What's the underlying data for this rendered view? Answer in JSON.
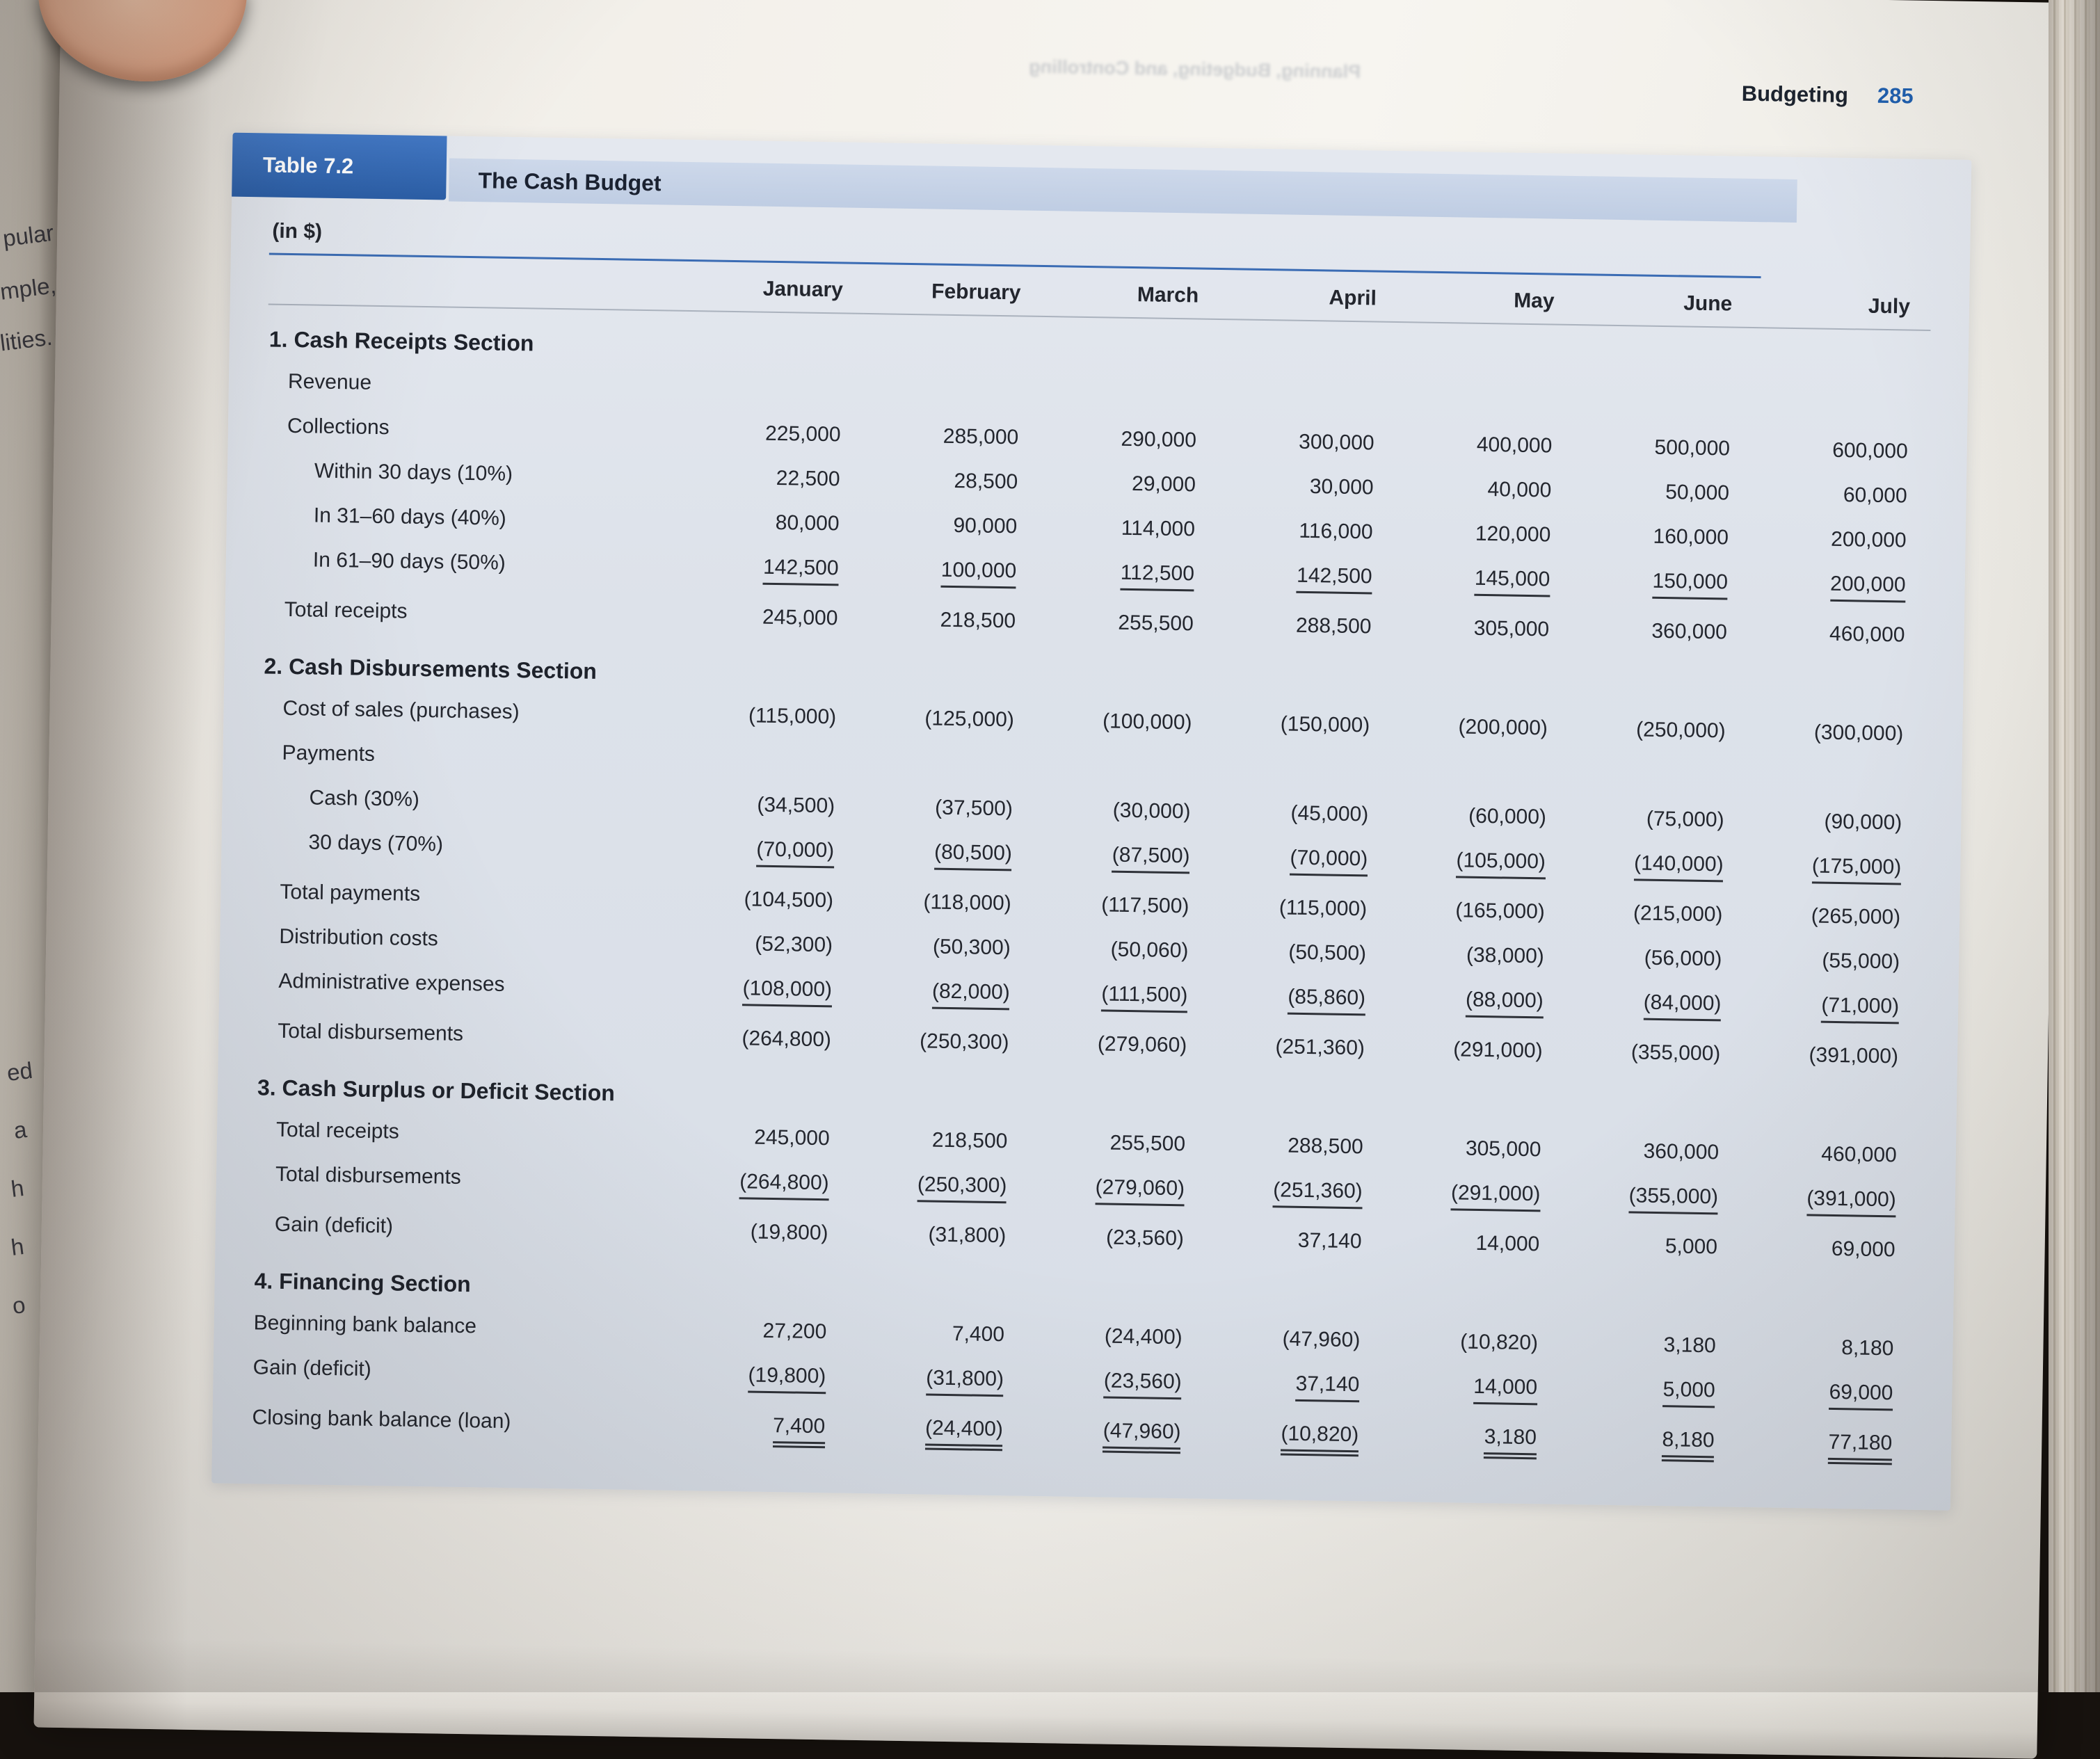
{
  "page": {
    "header_section": "Budgeting",
    "page_number": "285",
    "ghost_text": "Planning, Budgeting, and Controlling",
    "margin_fragments": [
      "pular",
      "mple,",
      "lities.",
      "ed",
      "a",
      "h",
      "h",
      "o"
    ]
  },
  "colors": {
    "accent_blue": "#2f63a8",
    "band_light_blue": "#c7d3e7",
    "page_number_blue": "#1f5fae",
    "table_background": "#dde2ea"
  },
  "table": {
    "title_label": "Table 7.2",
    "title": "The Cash Budget",
    "currency_note": "(in $)",
    "columns": [
      "January",
      "February",
      "March",
      "April",
      "May",
      "June",
      "July"
    ],
    "sections": [
      {
        "heading": "1. Cash Receipts Section",
        "rows": [
          {
            "label": "Revenue",
            "indent": 1,
            "values": [
              "",
              "",
              "",
              "",
              "",
              "",
              ""
            ]
          },
          {
            "label": "Collections",
            "indent": 1,
            "values": [
              "225,000",
              "285,000",
              "290,000",
              "300,000",
              "400,000",
              "500,000",
              "600,000"
            ]
          },
          {
            "label": "Within 30 days (10%)",
            "indent": 2,
            "values": [
              "22,500",
              "28,500",
              "29,000",
              "30,000",
              "40,000",
              "50,000",
              "60,000"
            ]
          },
          {
            "label": "In 31–60 days (40%)",
            "indent": 2,
            "values": [
              "80,000",
              "90,000",
              "114,000",
              "116,000",
              "120,000",
              "160,000",
              "200,000"
            ]
          },
          {
            "label": "In 61–90 days (50%)",
            "indent": 2,
            "underline": "single",
            "values": [
              "142,500",
              "100,000",
              "112,500",
              "142,500",
              "145,000",
              "150,000",
              "200,000"
            ]
          },
          {
            "label": "Total receipts",
            "indent": 1,
            "values": [
              "245,000",
              "218,500",
              "255,500",
              "288,500",
              "305,000",
              "360,000",
              "460,000"
            ]
          }
        ]
      },
      {
        "heading": "2. Cash Disbursements Section",
        "rows": [
          {
            "label": "Cost of sales (purchases)",
            "indent": 1,
            "values": [
              "(115,000)",
              "(125,000)",
              "(100,000)",
              "(150,000)",
              "(200,000)",
              "(250,000)",
              "(300,000)"
            ]
          },
          {
            "label": "Payments",
            "indent": 1,
            "values": [
              "",
              "",
              "",
              "",
              "",
              "",
              ""
            ]
          },
          {
            "label": "Cash (30%)",
            "indent": 2,
            "values": [
              "(34,500)",
              "(37,500)",
              "(30,000)",
              "(45,000)",
              "(60,000)",
              "(75,000)",
              "(90,000)"
            ]
          },
          {
            "label": "30 days (70%)",
            "indent": 2,
            "underline": "single",
            "values": [
              "(70,000)",
              "(80,500)",
              "(87,500)",
              "(70,000)",
              "(105,000)",
              "(140,000)",
              "(175,000)"
            ]
          },
          {
            "label": "Total payments",
            "indent": 1,
            "values": [
              "(104,500)",
              "(118,000)",
              "(117,500)",
              "(115,000)",
              "(165,000)",
              "(215,000)",
              "(265,000)"
            ]
          },
          {
            "label": "Distribution costs",
            "indent": 1,
            "values": [
              "(52,300)",
              "(50,300)",
              "(50,060)",
              "(50,500)",
              "(38,000)",
              "(56,000)",
              "(55,000)"
            ]
          },
          {
            "label": "Administrative expenses",
            "indent": 1,
            "underline": "single",
            "values": [
              "(108,000)",
              "(82,000)",
              "(111,500)",
              "(85,860)",
              "(88,000)",
              "(84,000)",
              "(71,000)"
            ]
          },
          {
            "label": "Total disbursements",
            "indent": 1,
            "values": [
              "(264,800)",
              "(250,300)",
              "(279,060)",
              "(251,360)",
              "(291,000)",
              "(355,000)",
              "(391,000)"
            ]
          }
        ]
      },
      {
        "heading": "3. Cash Surplus or Deficit Section",
        "rows": [
          {
            "label": "Total receipts",
            "indent": 1,
            "values": [
              "245,000",
              "218,500",
              "255,500",
              "288,500",
              "305,000",
              "360,000",
              "460,000"
            ]
          },
          {
            "label": "Total disbursements",
            "indent": 1,
            "underline": "single",
            "values": [
              "(264,800)",
              "(250,300)",
              "(279,060)",
              "(251,360)",
              "(291,000)",
              "(355,000)",
              "(391,000)"
            ]
          },
          {
            "label": "Gain (deficit)",
            "indent": 1,
            "values": [
              "(19,800)",
              "(31,800)",
              "(23,560)",
              "37,140",
              "14,000",
              "5,000",
              "69,000"
            ]
          }
        ]
      },
      {
        "heading": "4. Financing Section",
        "rows": [
          {
            "label": "Beginning bank balance",
            "indent": 0,
            "values": [
              "27,200",
              "7,400",
              "(24,400)",
              "(47,960)",
              "(10,820)",
              "3,180",
              "8,180"
            ]
          },
          {
            "label": "Gain (deficit)",
            "indent": 0,
            "underline": "single",
            "values": [
              "(19,800)",
              "(31,800)",
              "(23,560)",
              "37,140",
              "14,000",
              "5,000",
              "69,000"
            ]
          },
          {
            "label": "Closing bank balance (loan)",
            "indent": 0,
            "underline": "double",
            "values": [
              "7,400",
              "(24,400)",
              "(47,960)",
              "(10,820)",
              "3,180",
              "8,180",
              "77,180"
            ]
          }
        ]
      }
    ]
  }
}
